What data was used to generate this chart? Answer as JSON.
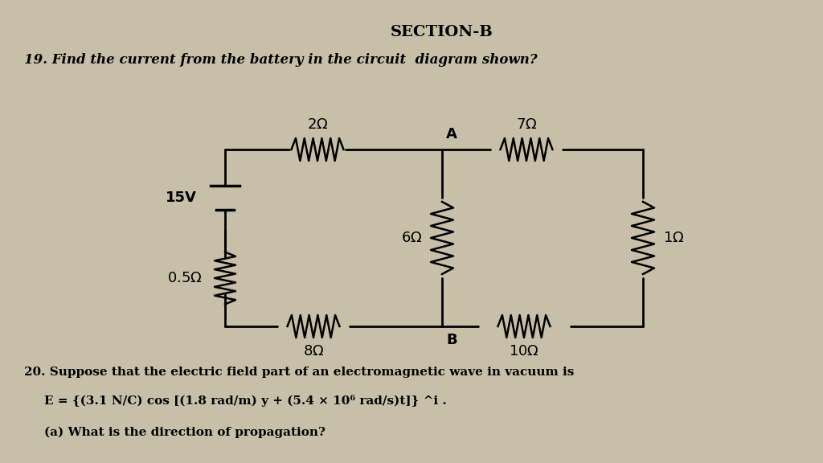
{
  "title": "SECTION-B",
  "question": "19. Find the current from the battery in the circuit  diagram shown?",
  "bg_color": "#c8bfa8",
  "circuit": {
    "battery_voltage": "15V",
    "resistors": {
      "r_internal": "0.5Ω",
      "r_top_left": "2Ω",
      "r_top_right": "7Ω",
      "r_middle": "6Ω",
      "r_right": "1Ω",
      "r_bottom_left": "8Ω",
      "r_bottom_right": "10Ω"
    },
    "nodes": {
      "A": "A",
      "B": "B"
    }
  },
  "bottom_text": "20. Suppose that the electric field part of an electromagnetic wave in vacuum is",
  "bottom_text2": "E = {(3.1 N/C) cos [(1.8 rad/m) y + (5.4 × 10⁶ rad/s)t]} ^i .",
  "bottom_text3": "(a) What is the direction of propagation?"
}
